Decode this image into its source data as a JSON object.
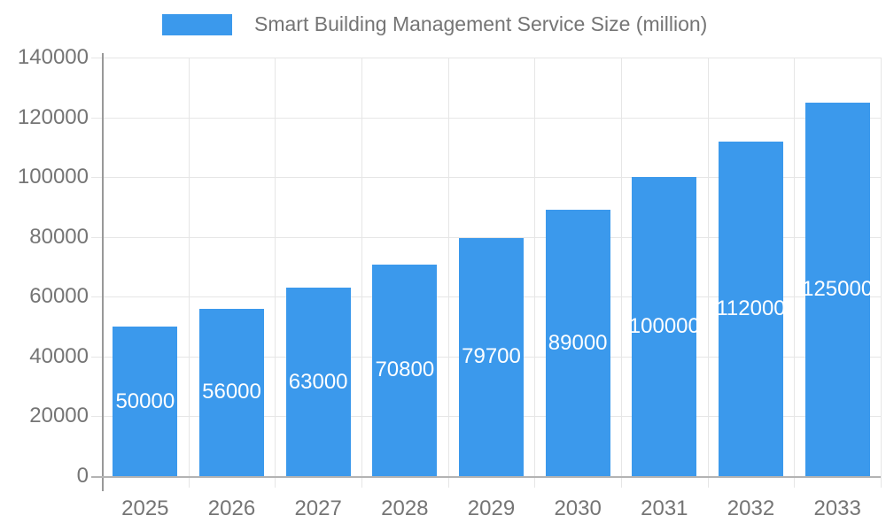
{
  "legend": {
    "label": "Smart Building Management Service Size (million)"
  },
  "chart_data": {
    "type": "bar",
    "title": "Smart Building Management Service Size (million)",
    "categories": [
      "2025",
      "2026",
      "2027",
      "2028",
      "2029",
      "2030",
      "2031",
      "2032",
      "2033"
    ],
    "series": [
      {
        "name": "Smart Building Management Service Size (million)",
        "values": [
          50000,
          56000,
          63000,
          70800,
          79700,
          89000,
          100000,
          112000,
          125000
        ]
      }
    ],
    "value_labels": [
      "50000",
      "56000",
      "63000",
      "70800",
      "79700",
      "89000",
      "100000",
      "112000",
      "125000"
    ],
    "xlabel": "",
    "ylabel": "",
    "ylim": [
      0,
      140000
    ],
    "ytick_step": 20000,
    "ytick_labels": [
      "0",
      "20000",
      "40000",
      "60000",
      "80000",
      "100000",
      "120000",
      "140000"
    ],
    "grid": true,
    "legend_position": "top-center",
    "colors": {
      "bar": "#3b99ec",
      "value_label": "#ffffff",
      "tick_label": "#757575",
      "legend_text": "#757575",
      "gridline": "#e6e6e6",
      "y_axis_line": "#999999",
      "x_axis_line": "#b3b3b3",
      "background": "#ffffff"
    }
  }
}
